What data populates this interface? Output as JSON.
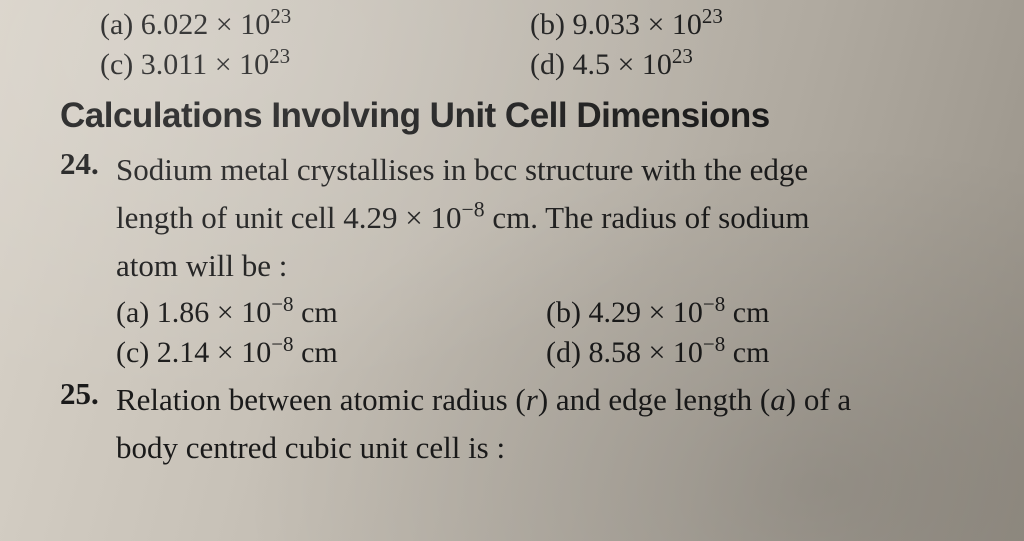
{
  "background_color": "#c8c2b8",
  "text_color": "#1a1a1a",
  "font_family_body": "Times New Roman",
  "font_family_heading": "Arial",
  "q23_options": {
    "a": {
      "label": "(a)",
      "mantissa": "6.022",
      "times": " × 10",
      "exp": "23"
    },
    "b": {
      "label": "(b)",
      "mantissa": "9.033",
      "times": " × 10",
      "exp": "23"
    },
    "c": {
      "label": "(c)",
      "mantissa": "3.011",
      "times": " × 10",
      "exp": "23"
    },
    "d": {
      "label": "(d)",
      "mantissa": "4.5",
      "times": " × 10",
      "exp": "23"
    }
  },
  "section_heading": "Calculations Involving Unit Cell Dimensions",
  "q24": {
    "number": "24.",
    "text_l1": "Sodium metal crystallises in bcc structure with the edge",
    "text_l2a": "length of unit cell 4.29 × 10",
    "text_l2a_exp": "−8",
    "text_l2b": " cm. The radius of sodium",
    "text_l3": "atom will be :",
    "options": {
      "a": {
        "label": "(a)",
        "mantissa": "1.86",
        "times": " × 10",
        "exp": "−8",
        "unit": " cm"
      },
      "b": {
        "label": "(b)",
        "mantissa": "4.29",
        "times": " × 10",
        "exp": "−8",
        "unit": " cm"
      },
      "c": {
        "label": "(c)",
        "mantissa": "2.14",
        "times": " × 10",
        "exp": "−8",
        "unit": " cm"
      },
      "d": {
        "label": "(d)",
        "mantissa": "8.58",
        "times": " × 10",
        "exp": "−8",
        "unit": " cm"
      }
    }
  },
  "q25": {
    "number": "25.",
    "text_p1": "Relation between atomic radius (",
    "text_r": "r",
    "text_p2": ") and edge length (",
    "text_a": "a",
    "text_p3": ") of a",
    "text_l2": "body centred cubic unit cell is :"
  }
}
